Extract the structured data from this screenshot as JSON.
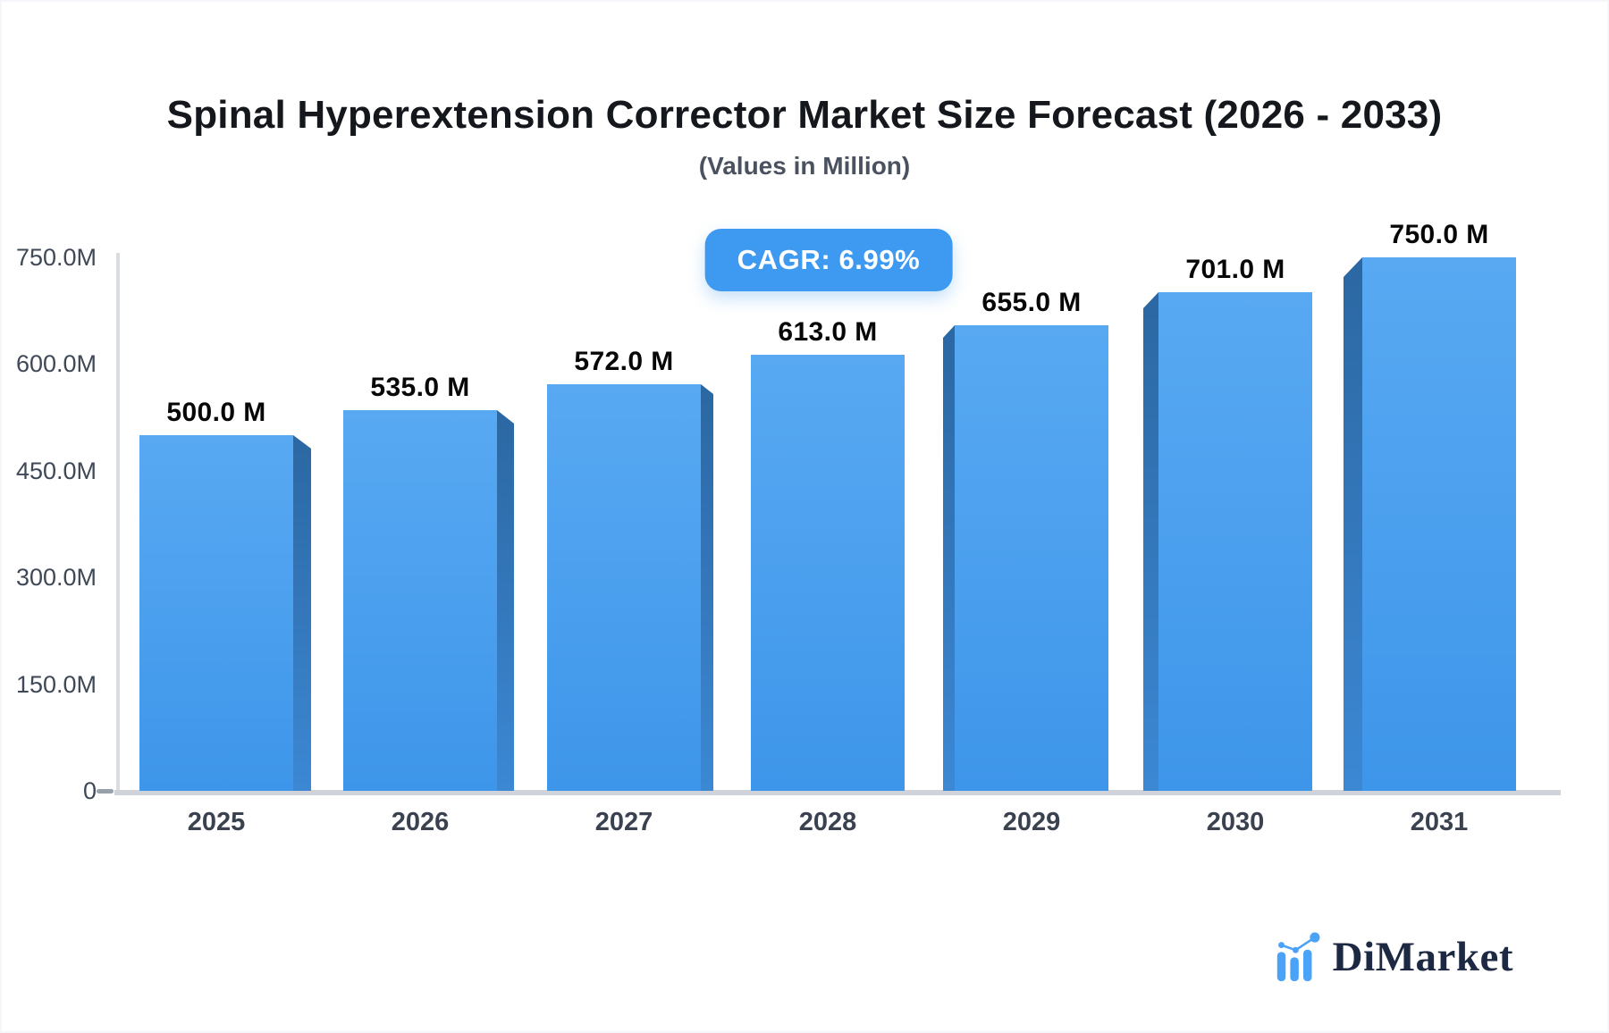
{
  "header": {
    "title": "Spinal Hyperextension Corrector Market Size Forecast (2026 - 2033)",
    "subtitle": "(Values in Million)"
  },
  "badge": {
    "label": "CAGR: 6.99%"
  },
  "chart_data": {
    "type": "bar",
    "title": "Spinal Hyperextension Corrector Market Size Forecast (2026 - 2033)",
    "subtitle": "(Values in Million)",
    "categories": [
      "2025",
      "2026",
      "2027",
      "2028",
      "2029",
      "2030",
      "2031"
    ],
    "values": [
      500,
      535,
      572,
      613,
      655,
      701,
      750
    ],
    "value_labels": [
      "500.0 M",
      "535.0 M",
      "572.0 M",
      "613.0 M",
      "655.0 M",
      "701.0 M",
      "750.0 M"
    ],
    "unit": "Million",
    "xlabel": "",
    "ylabel": "",
    "ylim": [
      0,
      750
    ],
    "yticks": [
      {
        "label": "0",
        "value": 0
      },
      {
        "label": "150.0M",
        "value": 150
      },
      {
        "label": "300.0M",
        "value": 300
      },
      {
        "label": "450.0M",
        "value": 450
      },
      {
        "label": "600.0M",
        "value": 600
      },
      {
        "label": "750.0M",
        "value": 750
      }
    ],
    "grid": "off",
    "legend": "none",
    "cagr": "6.99%",
    "bar_style": "3d-extruded",
    "bar_color_top": "#58A9F2",
    "bar_color_bottom": "#3E96EA",
    "bar_side_color": "#2E74B2"
  },
  "branding": {
    "logo_text": "DiMarket",
    "logo_icon": "bar-chart-sparkline-icon"
  },
  "colors": {
    "badge_bg": "#3E9AF0",
    "badge_text": "#FFFFFF",
    "axis_line": "#D0D4DA",
    "tick_text": "#3F4857",
    "year_text": "#39424E",
    "value_text": "#070707",
    "title_text": "#14171C",
    "subtitle_text": "#4A5260",
    "logo_text_color": "#1D2842",
    "logo_icon_color": "#4BA3F7"
  }
}
